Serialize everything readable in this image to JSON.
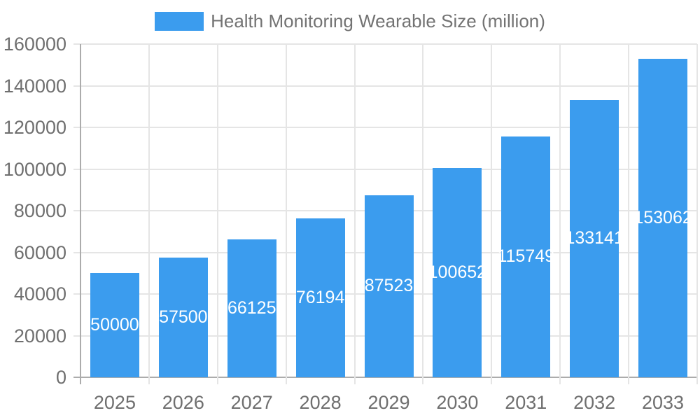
{
  "chart_data": {
    "type": "bar",
    "title": "Health Monitoring Wearable Size (million)",
    "legend": [
      "Health Monitoring Wearable Size (million)"
    ],
    "legend_position": "top-center",
    "categories": [
      "2025",
      "2026",
      "2027",
      "2028",
      "2029",
      "2030",
      "2031",
      "2032",
      "2033"
    ],
    "values": [
      50000,
      57500,
      66125,
      76194,
      87523,
      100652,
      115749,
      133141,
      153062
    ],
    "value_labels_position": "inside-center",
    "xlabel": "",
    "ylabel": "",
    "ylim": [
      0,
      160000
    ],
    "ytick_step": 20000,
    "ytick_labels": [
      "0",
      "20000",
      "40000",
      "60000",
      "80000",
      "100000",
      "120000",
      "140000",
      "160000"
    ],
    "grid": true,
    "colors": {
      "bar": "#3B9CEE",
      "value_label": "#FFFFFF",
      "axis_label": "#6F6F6F",
      "legend_text": "#737373",
      "grid_line": "#E5E5E5",
      "axis_line": "#ACACAC",
      "background": "#FFFFFF"
    }
  }
}
